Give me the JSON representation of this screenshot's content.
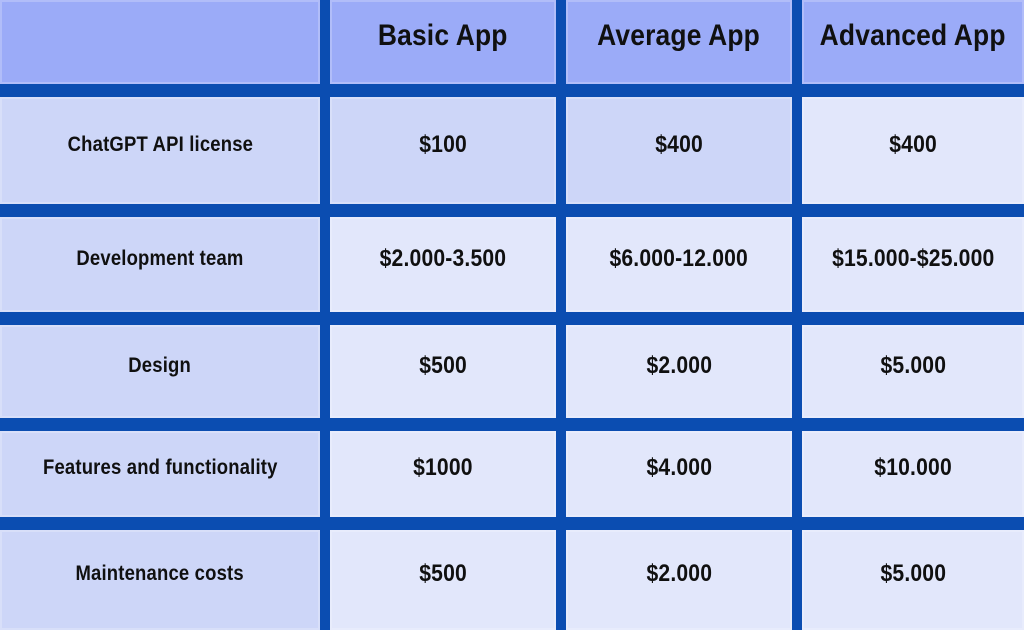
{
  "chart_data": {
    "type": "table",
    "columns": [
      "",
      "Basic App",
      "Average App",
      "Advanced App"
    ],
    "rows": [
      {
        "label": "ChatGPT API license",
        "values": [
          "$100",
          "$400",
          "$400"
        ]
      },
      {
        "label": "Development team",
        "values": [
          "$2.000-3.500",
          "$6.000-12.000",
          "$15.000-$25.000"
        ]
      },
      {
        "label": "Design",
        "values": [
          "$500",
          "$2.000",
          "$5.000"
        ]
      },
      {
        "label": "Features and functionality",
        "values": [
          "$1000",
          "$4.000",
          "$10.000"
        ]
      },
      {
        "label": "Maintenance costs",
        "values": [
          "$500",
          "$2.000",
          "$5.000"
        ]
      }
    ]
  },
  "colors": {
    "background_border": "#0b4db1",
    "header_cell": "#9babf8",
    "label_cell": "#cdd6f8",
    "value_cell": "#e2e7fb",
    "text": "#101010"
  }
}
